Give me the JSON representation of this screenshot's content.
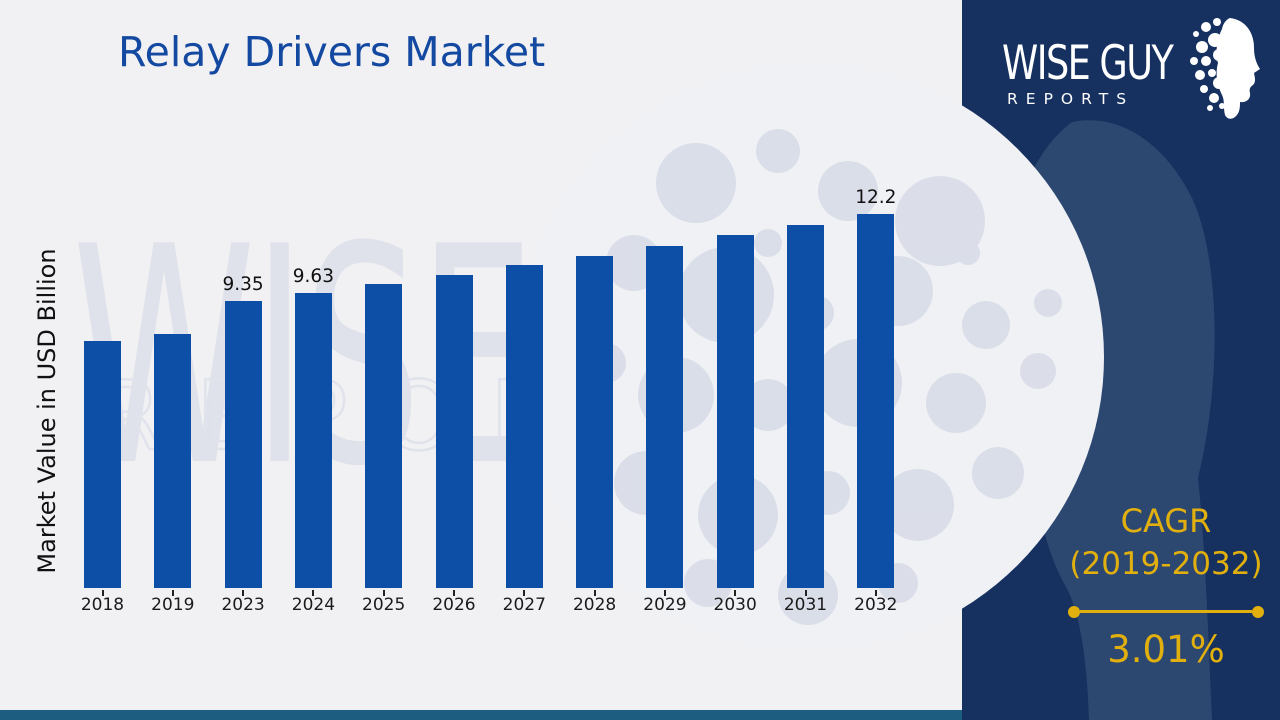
{
  "title": "Relay Drivers Market",
  "watermark": {
    "line1": "WISE GUY",
    "line2": "REPORTS"
  },
  "logo": {
    "line1": "WISE GUY",
    "line2": "REPORTS"
  },
  "cagr": {
    "heading": "CAGR",
    "range": "(2019-2032)",
    "value": "3.01%"
  },
  "chart_data": {
    "type": "bar",
    "title": "Relay Drivers Market",
    "xlabel": "",
    "ylabel": "Market Value in USD Billion",
    "categories": [
      "2018",
      "2019",
      "2023",
      "2024",
      "2025",
      "2026",
      "2027",
      "2028",
      "2029",
      "2030",
      "2031",
      "2032"
    ],
    "values": [
      8.05,
      8.3,
      9.35,
      9.63,
      9.92,
      10.22,
      10.53,
      10.84,
      11.17,
      11.5,
      11.85,
      12.2
    ],
    "bar_labels": [
      "",
      "",
      "9.35",
      "9.63",
      "",
      "",
      "",
      "",
      "",
      "",
      "",
      "12.2"
    ],
    "ylim": [
      0,
      13
    ],
    "grid": false,
    "legend": false,
    "bar_color": "#0d4ea6"
  },
  "colors": {
    "bar": "#0d4ea6",
    "panel_navy": "#16315f",
    "accent_gold": "#e2b00e",
    "bottom_strip_teal": "#1d5e80",
    "title_blue": "#1449a1",
    "watermark_gray": "#dfe2ea",
    "background": "#f1f1f3"
  }
}
